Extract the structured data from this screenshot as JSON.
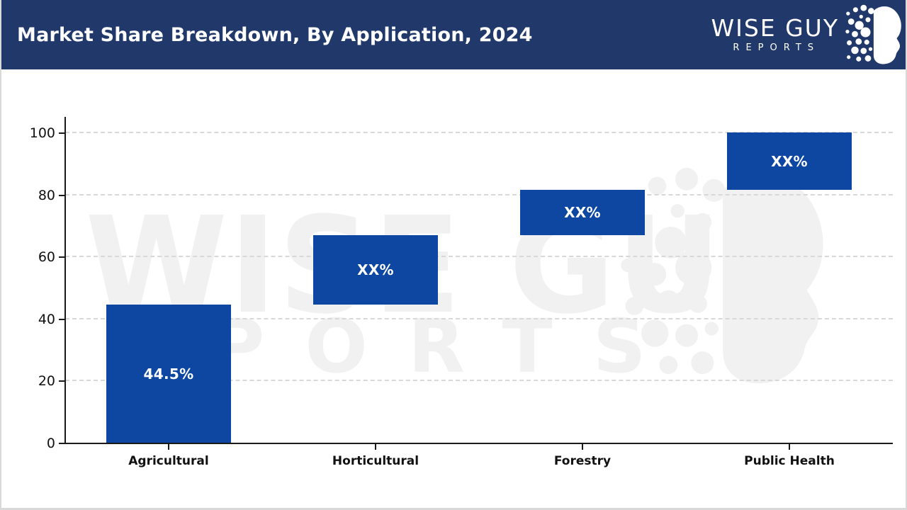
{
  "header": {
    "title": "Market Share Breakdown, By Application, 2024",
    "bg_color": "#21386b",
    "logo": {
      "line1": "WISE GUY",
      "line2": "REPORTS"
    }
  },
  "watermark": {
    "line1": "WISE GU",
    "line2": "PORTS"
  },
  "chart_data": {
    "type": "bar",
    "variant": "waterfall",
    "title": "Market Share Breakdown, By Application, 2024",
    "xlabel": "",
    "ylabel": "",
    "categories": [
      "Agricultural",
      "Horticultural",
      "Forestry",
      "Public Health"
    ],
    "segments": [
      {
        "category": "Agricultural",
        "start": 0,
        "end": 44.5,
        "label": "44.5%"
      },
      {
        "category": "Horticultural",
        "start": 44.5,
        "end": 67,
        "label": "XX%"
      },
      {
        "category": "Forestry",
        "start": 67,
        "end": 81.5,
        "label": "XX%"
      },
      {
        "category": "Public Health",
        "start": 81.5,
        "end": 100,
        "label": "XX%"
      }
    ],
    "y_ticks": [
      0,
      20,
      40,
      60,
      80,
      100
    ],
    "ylim": [
      0,
      105
    ],
    "bar_color": "#0d47a1",
    "value_label_color": "#ffffff",
    "grid": "horizontal-dashed",
    "legend_position": "none"
  }
}
